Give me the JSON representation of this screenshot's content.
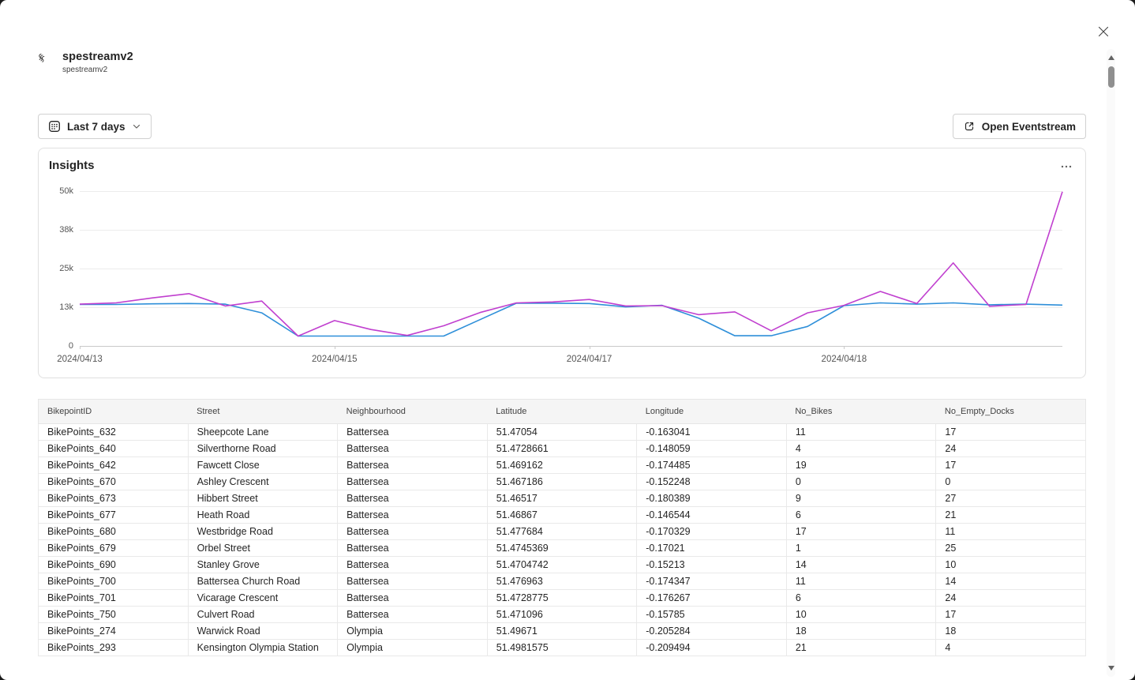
{
  "header": {
    "title": "spestreamv2",
    "subtitle": "spestreamv2"
  },
  "toolbar": {
    "time_range_label": "Last 7 days",
    "open_button_label": "Open Eventstream"
  },
  "insights": {
    "title": "Insights"
  },
  "icons": {
    "close": "close-icon",
    "eventstream": "eventstream-icon",
    "calendar": "calendar-dots-icon",
    "chevron_down": "chevron-down-icon",
    "open_external": "open-in-new-icon",
    "more": "more-options-icon"
  },
  "colors": {
    "series_blue": "#2e8fd9",
    "series_magenta": "#c03fcf",
    "gridline": "#ececec",
    "axis": "#c9c9c9"
  },
  "chart_data": {
    "type": "line",
    "title": "Insights",
    "xlabel": "",
    "ylabel": "",
    "ylim": [
      0,
      50000
    ],
    "grid": true,
    "legend": "none",
    "y_tick_labels": [
      "50k",
      "38k",
      "25k",
      "13k",
      "0"
    ],
    "x_tick_labels": [
      "2024/04/13",
      "2024/04/15",
      "2024/04/17",
      "2024/04/18"
    ],
    "x_tick_indices": [
      0,
      7,
      14,
      21
    ],
    "series": [
      {
        "name": "blue",
        "color": "#2e8fd9",
        "values": [
          13400,
          13400,
          13600,
          13700,
          13500,
          10700,
          3200,
          3200,
          3200,
          3200,
          3200,
          8500,
          13800,
          13800,
          13700,
          12600,
          13100,
          9000,
          3300,
          3300,
          6300,
          13000,
          13900,
          13500,
          13900,
          13300,
          13500,
          13200
        ]
      },
      {
        "name": "magenta",
        "color": "#c03fcf",
        "values": [
          13500,
          13900,
          15500,
          16900,
          12900,
          14500,
          3200,
          8200,
          5300,
          3400,
          6500,
          10800,
          13900,
          14200,
          15000,
          12900,
          13000,
          10100,
          11000,
          4900,
          10700,
          13100,
          17600,
          13700,
          26800,
          12800,
          13400,
          49800
        ]
      }
    ]
  },
  "table": {
    "columns": [
      "BikepointID",
      "Street",
      "Neighbourhood",
      "Latitude",
      "Longitude",
      "No_Bikes",
      "No_Empty_Docks"
    ],
    "rows": [
      [
        "BikePoints_632",
        "Sheepcote Lane",
        "Battersea",
        "51.47054",
        "-0.163041",
        "11",
        "17"
      ],
      [
        "BikePoints_640",
        "Silverthorne Road",
        "Battersea",
        "51.4728661",
        "-0.148059",
        "4",
        "24"
      ],
      [
        "BikePoints_642",
        "Fawcett Close",
        "Battersea",
        "51.469162",
        "-0.174485",
        "19",
        "17"
      ],
      [
        "BikePoints_670",
        "Ashley Crescent",
        "Battersea",
        "51.467186",
        "-0.152248",
        "0",
        "0"
      ],
      [
        "BikePoints_673",
        "Hibbert Street",
        "Battersea",
        "51.46517",
        "-0.180389",
        "9",
        "27"
      ],
      [
        "BikePoints_677",
        "Heath Road",
        "Battersea",
        "51.46867",
        "-0.146544",
        "6",
        "21"
      ],
      [
        "BikePoints_680",
        "Westbridge Road",
        "Battersea",
        "51.477684",
        "-0.170329",
        "17",
        "11"
      ],
      [
        "BikePoints_679",
        "Orbel Street",
        "Battersea",
        "51.4745369",
        "-0.17021",
        "1",
        "25"
      ],
      [
        "BikePoints_690",
        "Stanley Grove",
        "Battersea",
        "51.4704742",
        "-0.15213",
        "14",
        "10"
      ],
      [
        "BikePoints_700",
        "Battersea Church Road",
        "Battersea",
        "51.476963",
        "-0.174347",
        "11",
        "14"
      ],
      [
        "BikePoints_701",
        "Vicarage Crescent",
        "Battersea",
        "51.4728775",
        "-0.176267",
        "6",
        "24"
      ],
      [
        "BikePoints_750",
        "Culvert Road",
        "Battersea",
        "51.471096",
        "-0.15785",
        "10",
        "17"
      ],
      [
        "BikePoints_274",
        "Warwick Road",
        "Olympia",
        "51.49671",
        "-0.205284",
        "18",
        "18"
      ],
      [
        "BikePoints_293",
        "Kensington Olympia Station",
        "Olympia",
        "51.4981575",
        "-0.209494",
        "21",
        "4"
      ]
    ]
  }
}
